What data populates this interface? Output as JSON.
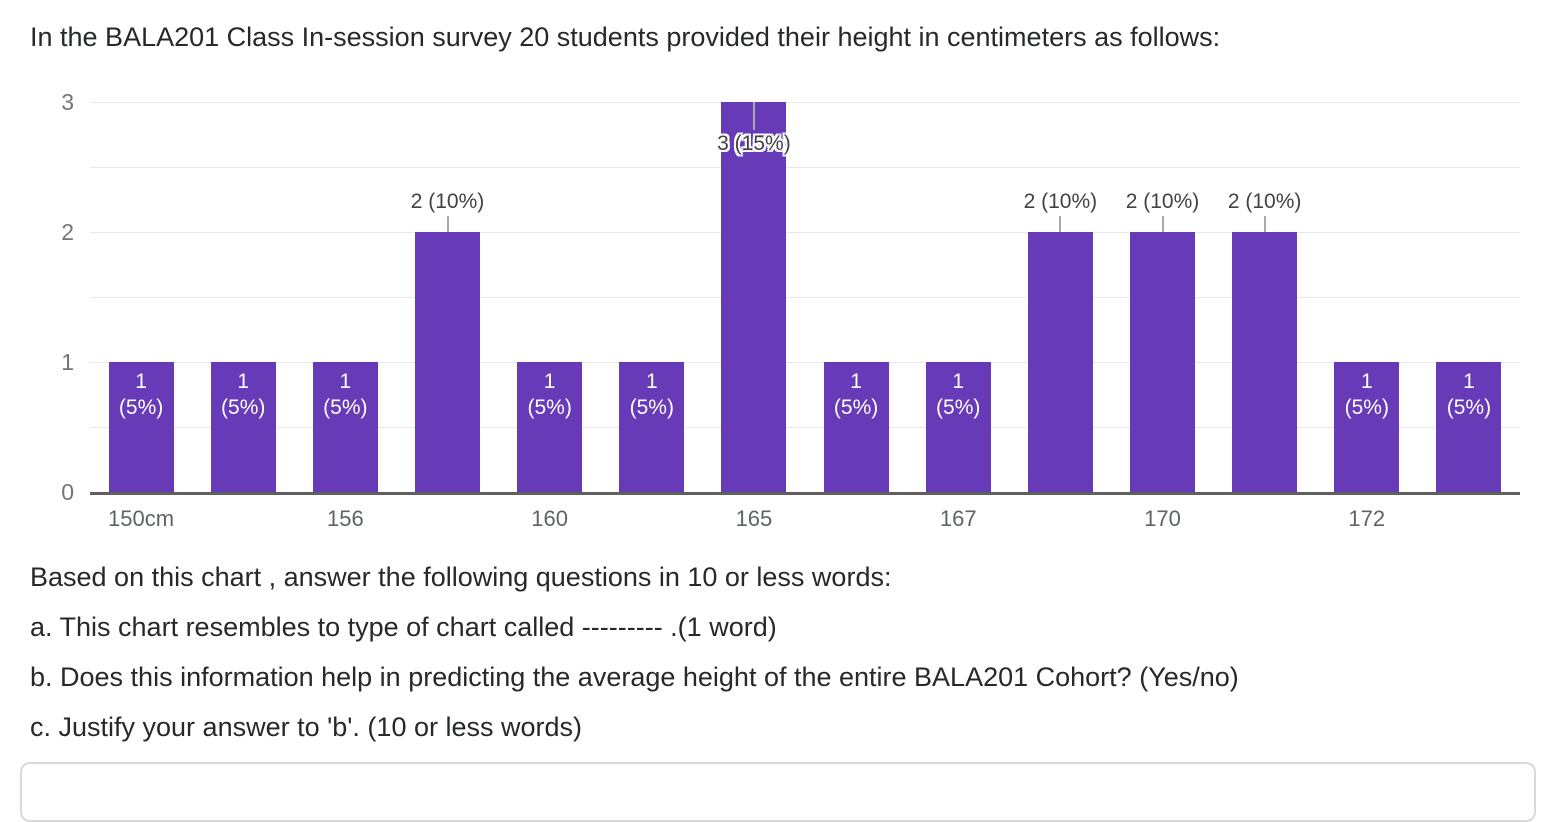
{
  "texts": {
    "title": "In the BALA201 Class In-session survey 20 students provided their height in centimeters as follows:",
    "intro": "Based on this chart , answer the following questions in 10 or less words:",
    "question_a": "a. This chart resembles to type of chart called --------- .(1 word)",
    "question_b": "b. Does this information help in predicting the average height of the entire BALA201 Cohort? (Yes/no)",
    "question_c": "c. Justify your answer to 'b'. (10 or less words)"
  },
  "chart_data": {
    "type": "bar",
    "title": "",
    "total_responses": 20,
    "values": [
      1,
      1,
      1,
      2,
      1,
      1,
      3,
      1,
      1,
      2,
      2,
      2,
      1,
      1
    ],
    "bar_labels": [
      "1 (5%)",
      "1 (5%)",
      "1 (5%)",
      "2 (10%)",
      "1 (5%)",
      "1 (5%)",
      "3 (15%)",
      "1 (5%)",
      "1 (5%)",
      "2 (10%)",
      "2 (10%)",
      "2 (10%)",
      "1 (5%)",
      "1 (5%)"
    ],
    "label_style": [
      "inside",
      "inside",
      "inside",
      "above",
      "inside",
      "inside",
      "overlap",
      "inside",
      "inside",
      "above",
      "above",
      "above",
      "inside",
      "inside"
    ],
    "axis_labels": [
      "150cm",
      "",
      "156",
      "",
      "160",
      "",
      "165",
      "",
      "167",
      "",
      "170",
      "",
      "172",
      ""
    ],
    "y_ticks": [
      0,
      1,
      2,
      3
    ],
    "ylim": [
      0,
      3
    ],
    "grid_step": 0.5,
    "grid": true,
    "legend": "none",
    "colors": {
      "bar": "#673ab7",
      "inside_label": "#ffffff",
      "outside_label": "#424242",
      "axis_text": "#757575",
      "gridline": "#e9e9e9",
      "baseline": "#5f5f5f",
      "leader": "#a9a9a9"
    }
  }
}
